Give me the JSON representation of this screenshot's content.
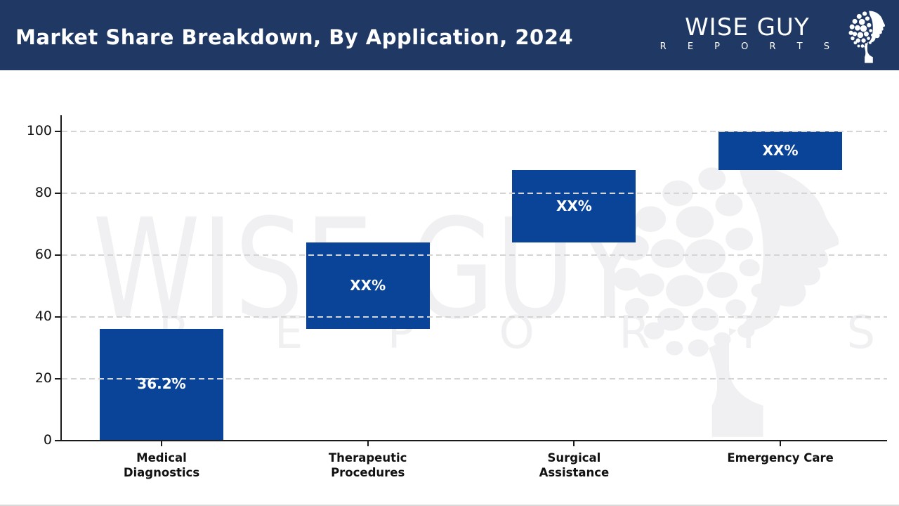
{
  "header": {
    "title": "Market Share Breakdown, By Application, 2024",
    "logo": {
      "line1": "WISE GUY",
      "line2": "R E P O R T S"
    }
  },
  "watermark": {
    "line1": "WISE GUY",
    "line2": "R E P O R T S"
  },
  "colors": {
    "header_background": "#1f3864",
    "bar_fill": "#0a4499",
    "bar_label_text": "#ffffff",
    "gridline": "#d4d4d4",
    "axis": "#1a1a1a",
    "watermark": "#f0f0f2"
  },
  "chart_data": {
    "type": "bar",
    "variant": "waterfall",
    "title": "Market Share Breakdown, By Application, 2024",
    "xlabel": "",
    "ylabel": "",
    "ylim": [
      0,
      100
    ],
    "yticks": [
      0,
      20,
      40,
      60,
      80,
      100
    ],
    "grid": "horizontal-dashed, drawn above bars",
    "legend": "none",
    "categories": [
      "Medical Diagnostics",
      "Therapeutic Procedures",
      "Surgical Assistance",
      "Emergency Care"
    ],
    "category_label_lines": [
      [
        "Medical",
        "Diagnostics"
      ],
      [
        "Therapeutic",
        "Procedures"
      ],
      [
        "Surgical",
        "Assistance"
      ],
      [
        "Emergency Care"
      ]
    ],
    "segments": [
      {
        "category": "Medical Diagnostics",
        "start": 0,
        "end": 36.2,
        "label": "36.2%"
      },
      {
        "category": "Therapeutic Procedures",
        "start": 36.2,
        "end": 64.0,
        "label": "XX%"
      },
      {
        "category": "Surgical Assistance",
        "start": 64.0,
        "end": 87.5,
        "label": "XX%"
      },
      {
        "category": "Emergency Care",
        "start": 87.5,
        "end": 100,
        "label": "XX%"
      }
    ]
  }
}
